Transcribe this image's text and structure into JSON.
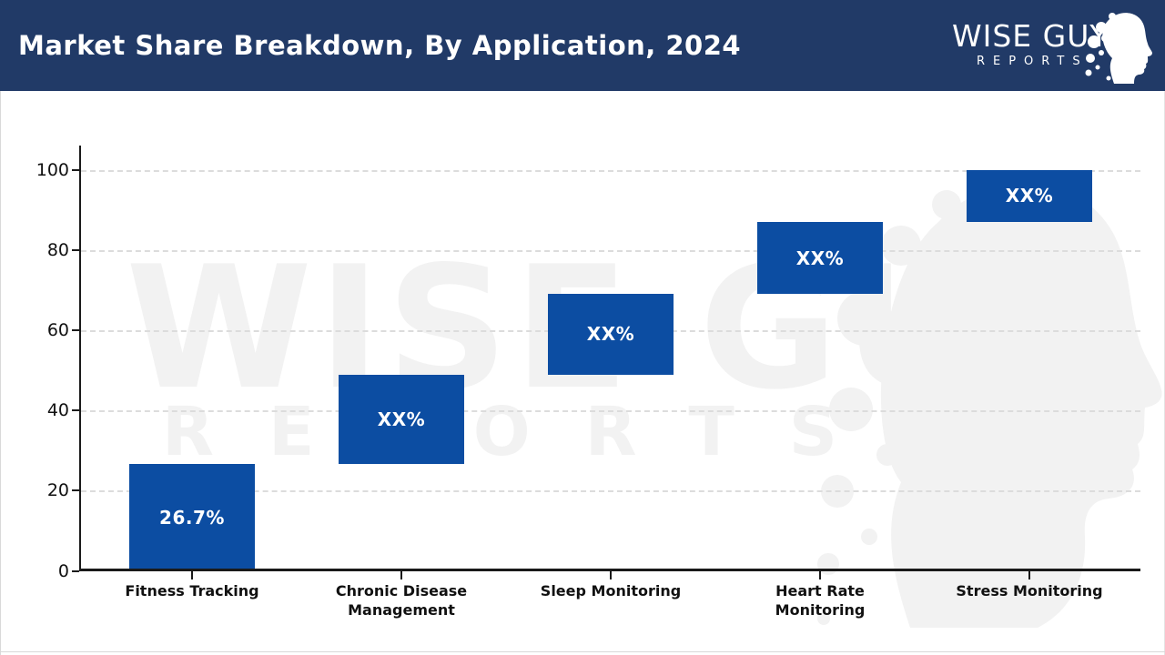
{
  "header": {
    "title": "Market Share Breakdown, By Application, 2024",
    "bg_color": "#213a67",
    "logo": {
      "line1": "WISE GUY",
      "line2": "REPORTS"
    }
  },
  "watermark": {
    "line1": "WISE GUY",
    "line2": "REPORTS"
  },
  "chart_data": {
    "type": "bar",
    "subtype": "waterfall",
    "title": "Market Share Breakdown, By Application, 2024",
    "categories": [
      "Fitness Tracking",
      "Chronic Disease\nManagement",
      "Sleep Monitoring",
      "Heart Rate\nMonitoring",
      "Stress Monitoring"
    ],
    "series": [
      {
        "name": "Market Share",
        "segments": [
          {
            "category": "Fitness Tracking",
            "start": 0,
            "end": 26.7,
            "label": "26.7%"
          },
          {
            "category": "Chronic Disease Management",
            "start": 26.7,
            "end": 49,
            "label": "XX%"
          },
          {
            "category": "Sleep Monitoring",
            "start": 49,
            "end": 69,
            "label": "XX%"
          },
          {
            "category": "Heart Rate Monitoring",
            "start": 69,
            "end": 87,
            "label": "XX%"
          },
          {
            "category": "Stress Monitoring",
            "start": 87,
            "end": 100,
            "label": "XX%"
          }
        ]
      }
    ],
    "ylabel": "",
    "xlabel": "",
    "ylim": [
      0,
      106
    ],
    "yticks": [
      0,
      20,
      40,
      60,
      80,
      100
    ],
    "grid": "horizontal-dashed",
    "legend": "none",
    "bar_color": "#0c4da2",
    "bar_label_color": "#ffffff",
    "gridline_color": "#dcdcdc"
  }
}
